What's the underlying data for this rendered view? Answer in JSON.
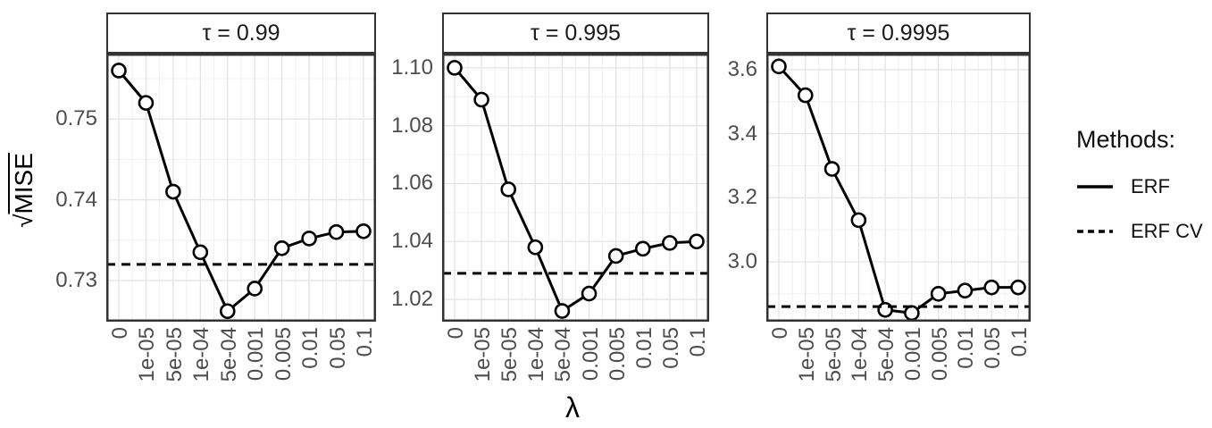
{
  "colors": {
    "background": "#ffffff",
    "line": "#000000",
    "point_fill": "#ffffff",
    "grid_major": "#e4e4e4",
    "grid_minor": "#f0f0f0",
    "panel_border": "#333333",
    "tick_text": "#4d4d4d",
    "strip_text": "#1a1a1a"
  },
  "chart_data": {
    "type": "line",
    "xlabel": "λ",
    "ylabel": "√MISE",
    "ylabel_radical": "√",
    "ylabel_base": "MISE",
    "grid": true,
    "categories": [
      "0",
      "1e-05",
      "5e-05",
      "1e-04",
      "5e-04",
      "0.001",
      "0.005",
      "0.01",
      "0.05",
      "0.1"
    ],
    "facets": [
      {
        "title": "τ = 0.99",
        "ytick_labels": [
          "0.73",
          "0.74",
          "0.75"
        ],
        "yticks": [
          0.73,
          0.74,
          0.75
        ],
        "ylim": [
          0.7249,
          0.7581
        ],
        "series": [
          {
            "name": "ERF",
            "style": "solid",
            "values": [
              0.756,
              0.752,
              0.741,
              0.7335,
              0.7262,
              0.729,
              0.734,
              0.7352,
              0.736,
              0.7361
            ]
          },
          {
            "name": "ERF CV",
            "style": "dashed",
            "hline": 0.732
          }
        ]
      },
      {
        "title": "τ = 0.995",
        "ytick_labels": [
          "1.02",
          "1.04",
          "1.06",
          "1.08",
          "1.10"
        ],
        "yticks": [
          1.02,
          1.04,
          1.06,
          1.08,
          1.1
        ],
        "ylim": [
          1.0123,
          1.1049
        ],
        "series": [
          {
            "name": "ERF",
            "style": "solid",
            "values": [
              1.1,
              1.089,
              1.058,
              1.038,
              1.016,
              1.022,
              1.035,
              1.0375,
              1.0395,
              1.04
            ]
          },
          {
            "name": "ERF CV",
            "style": "dashed",
            "hline": 1.029
          }
        ]
      },
      {
        "title": "τ = 0.9995",
        "ytick_labels": [
          "3.0",
          "3.2",
          "3.4",
          "3.6"
        ],
        "yticks": [
          3.0,
          3.2,
          3.4,
          3.6
        ],
        "ylim": [
          2.813,
          3.65
        ],
        "series": [
          {
            "name": "ERF",
            "style": "solid",
            "values": [
              3.61,
              3.52,
              3.29,
              3.13,
              2.85,
              2.84,
              2.9,
              2.91,
              2.92,
              2.92
            ]
          },
          {
            "name": "ERF CV",
            "style": "dashed",
            "hline": 2.86
          }
        ]
      }
    ],
    "legend": {
      "title": "Methods:",
      "position": "right",
      "entries": [
        {
          "label": "ERF",
          "style": "solid"
        },
        {
          "label": "ERF CV",
          "style": "dashed"
        }
      ]
    }
  }
}
